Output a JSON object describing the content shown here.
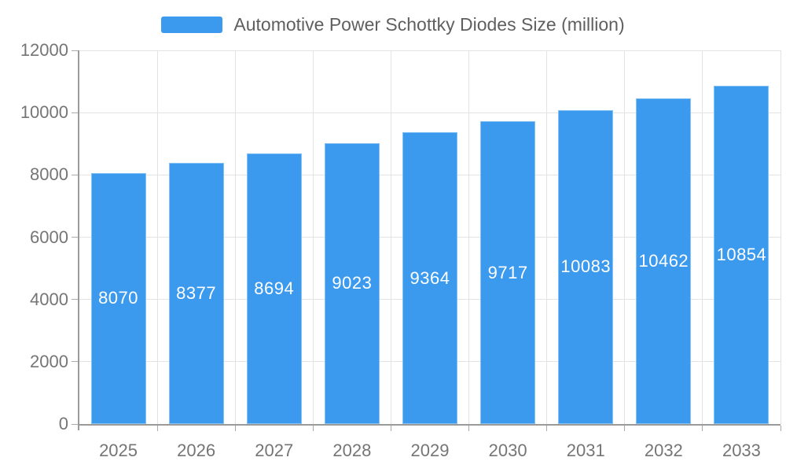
{
  "legend": {
    "label": "Automotive Power Schottky Diodes Size (million)"
  },
  "chart_data": {
    "type": "bar",
    "title": "Automotive Power Schottky Diodes Size (million)",
    "series_name": "Automotive Power Schottky Diodes Size (million)",
    "categories": [
      "2025",
      "2026",
      "2027",
      "2028",
      "2029",
      "2030",
      "2031",
      "2032",
      "2033"
    ],
    "values": [
      8070,
      8377,
      8694,
      9023,
      9364,
      9717,
      10083,
      10462,
      10854
    ],
    "xlabel": "",
    "ylabel": "",
    "ylim": [
      0,
      12000
    ],
    "yticks": [
      0,
      2000,
      4000,
      6000,
      8000,
      10000,
      12000
    ],
    "grid": true,
    "legend_position": "top",
    "bar_label_position": "inside-center",
    "colors": {
      "bar_fill": "#3B9AEE",
      "bar_border": "#85C3F5",
      "bar_label": "#FFFFFF",
      "axis_line": "#9A9A9A",
      "tick": "#AAAAAA",
      "grid_line": "#E3E3E3",
      "axis_text": "#757575",
      "legend_text": "#5F5F5F"
    }
  }
}
